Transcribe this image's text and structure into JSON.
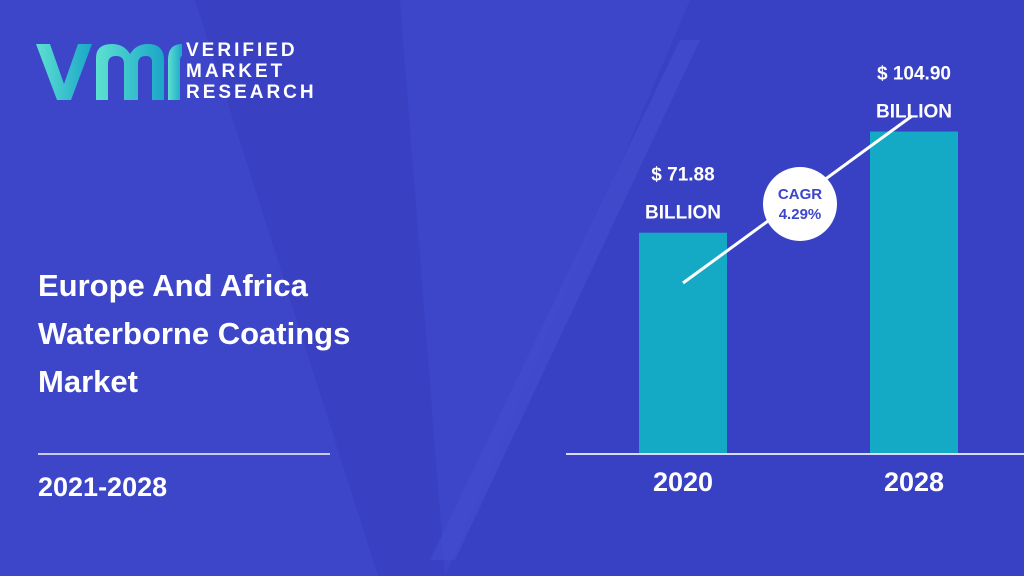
{
  "brand": {
    "logo_lines": [
      "VERIFIED",
      "MARKET",
      "RESEARCH"
    ],
    "colors": {
      "logo_gradient_start": "#5de0d0",
      "logo_gradient_end": "#1aa6c8",
      "background": "#3d45c9",
      "bar": "#14a9c4"
    }
  },
  "title_lines": [
    "Europe And Africa",
    "Waterborne Coatings",
    "Market"
  ],
  "period": "2021-2028",
  "chart_data": {
    "type": "bar",
    "categories": [
      "2020",
      "2028"
    ],
    "values": [
      71.88,
      104.9
    ],
    "value_labels": [
      [
        "$ 71.88",
        "BILLION"
      ],
      [
        "$ 104.90",
        "BILLION"
      ]
    ],
    "cagr": {
      "line1": "CAGR",
      "line2": "4.29%"
    },
    "title": "",
    "xlabel": "",
    "ylabel": "",
    "ylim": [
      0,
      124
    ]
  }
}
